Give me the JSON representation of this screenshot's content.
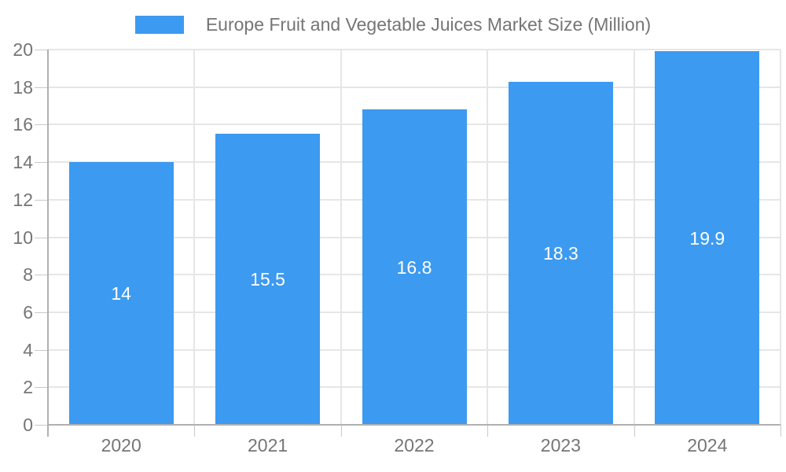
{
  "chart_data": {
    "type": "bar",
    "title": "Europe Fruit and Vegetable Juices Market Size (Million)",
    "categories": [
      "2020",
      "2021",
      "2022",
      "2023",
      "2024"
    ],
    "values": [
      14,
      15.5,
      16.8,
      18.3,
      19.9
    ],
    "value_labels": [
      "14",
      "15.5",
      "16.8",
      "18.3",
      "19.9"
    ],
    "xlabel": "",
    "ylabel": "",
    "ylim": [
      0,
      20
    ],
    "ytick_step": 2,
    "ytick_labels": [
      "0",
      "2",
      "4",
      "6",
      "8",
      "10",
      "12",
      "14",
      "16",
      "18",
      "20"
    ],
    "grid": true,
    "legend_position": "top-center",
    "colors": {
      "bar": "#3C9AF0",
      "bar_label_text": "#ffffff",
      "axis_label_text": "#757575",
      "title_text": "#757575",
      "gridline": "#e6e6e6",
      "axis_line": "#b0b0b0",
      "tick": "#c9c9c9",
      "background": "#ffffff"
    }
  }
}
